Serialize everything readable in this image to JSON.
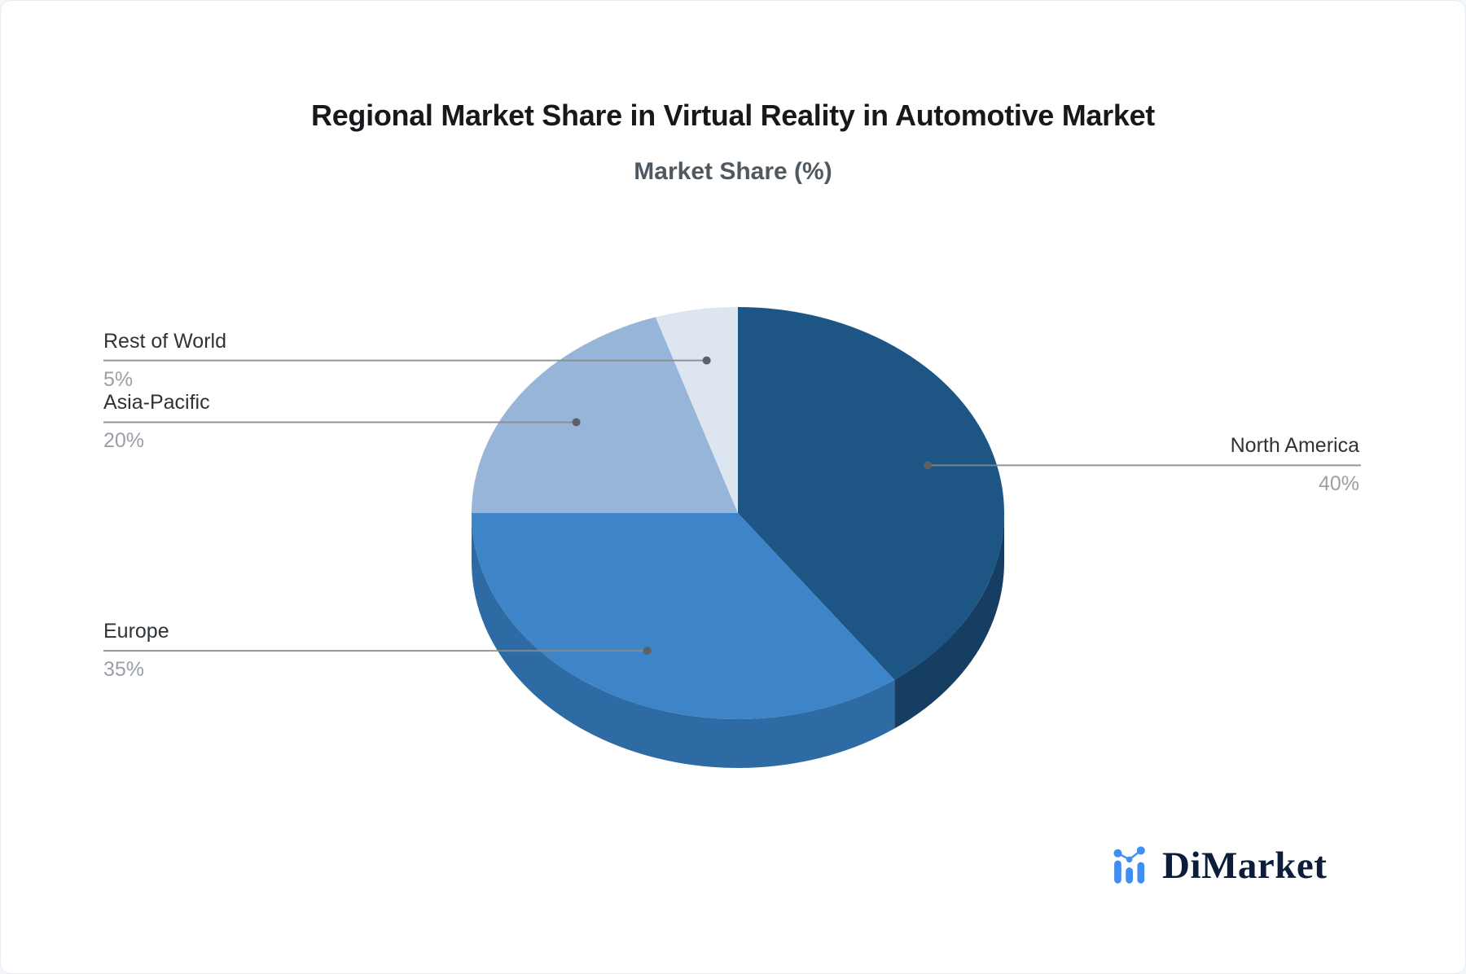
{
  "chart_data": {
    "type": "pie",
    "effect": "3d",
    "title": "Regional Market Share in Virtual Reality in Automotive Market",
    "subtitle": "Market Share (%)",
    "value_suffix": "%",
    "start_angle_deg": 0,
    "direction": "clockwise",
    "legend": "none",
    "slices": [
      {
        "label": "North America",
        "value": 40,
        "display": "40%",
        "color": "#1D5585",
        "side_color": "#163E63",
        "label_side": "right"
      },
      {
        "label": "Europe",
        "value": 35,
        "display": "35%",
        "color": "#3E84C8",
        "side_color": "#2E6BA4",
        "label_side": "left"
      },
      {
        "label": "Asia-Pacific",
        "value": 20,
        "display": "20%",
        "color": "#96B5D8",
        "side_color": null,
        "label_side": "left"
      },
      {
        "label": "Rest of World",
        "value": 5,
        "display": "5%",
        "color": "#DCE5F0",
        "side_color": null,
        "label_side": "left"
      }
    ],
    "colors": {
      "leader_line": "#8A8A8A",
      "leader_dot": "#5D6166",
      "label_text": "#2E3338",
      "value_text": "#9AA0A7",
      "title_text": "#16181B",
      "subtitle_text": "#4F5962"
    }
  },
  "brand": {
    "name": "DiMarket",
    "icon": "bar-line-chart-logo",
    "icon_color": "#3F8FF2",
    "text_color": "#0C1D3A"
  }
}
